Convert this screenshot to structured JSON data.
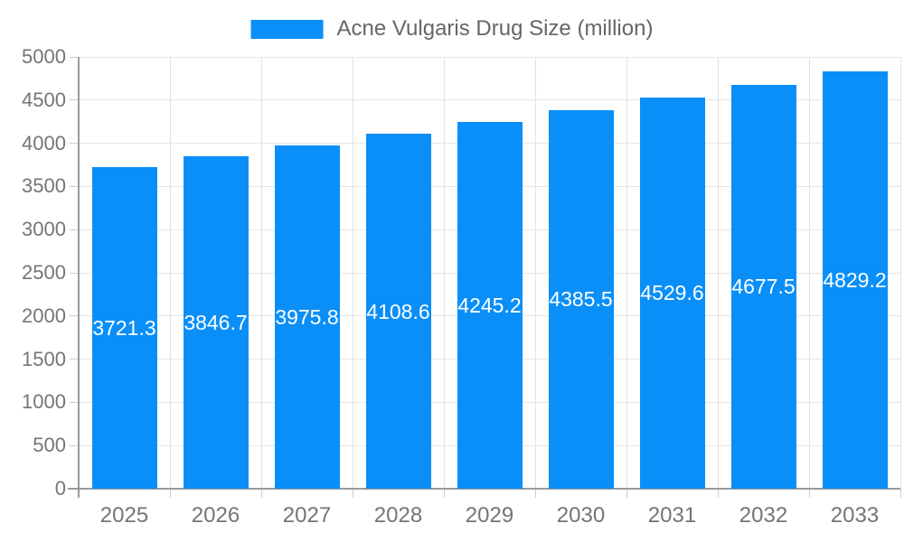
{
  "legend": {
    "label": "Acne Vulgaris Drug Size (million)",
    "swatch_color": "#0a8ff8"
  },
  "chart_data": {
    "type": "bar",
    "title": "Acne Vulgaris Drug Size (million)",
    "series_name": "Acne Vulgaris Drug Size (million)",
    "categories": [
      "2025",
      "2026",
      "2027",
      "2028",
      "2029",
      "2030",
      "2031",
      "2032",
      "2033"
    ],
    "values": [
      3721.3,
      3846.7,
      3975.8,
      4108.6,
      4245.2,
      4385.5,
      4529.6,
      4677.5,
      4829.2
    ],
    "xlabel": "",
    "ylabel": "",
    "ylim": [
      0,
      5000
    ],
    "ytick_step": 500,
    "ytick_labels": [
      "0",
      "500",
      "1000",
      "1500",
      "2000",
      "2500",
      "3000",
      "3500",
      "4000",
      "4500",
      "5000"
    ],
    "grid": true,
    "legend_position": "top",
    "value_labels_position": "center-inside",
    "bar_color": "#0a8ff8",
    "value_label_color": "#ffffff",
    "axis_label_color": "#757575",
    "grid_color": "#e6e6e6",
    "axis_line_color": "#9a9a9a"
  }
}
